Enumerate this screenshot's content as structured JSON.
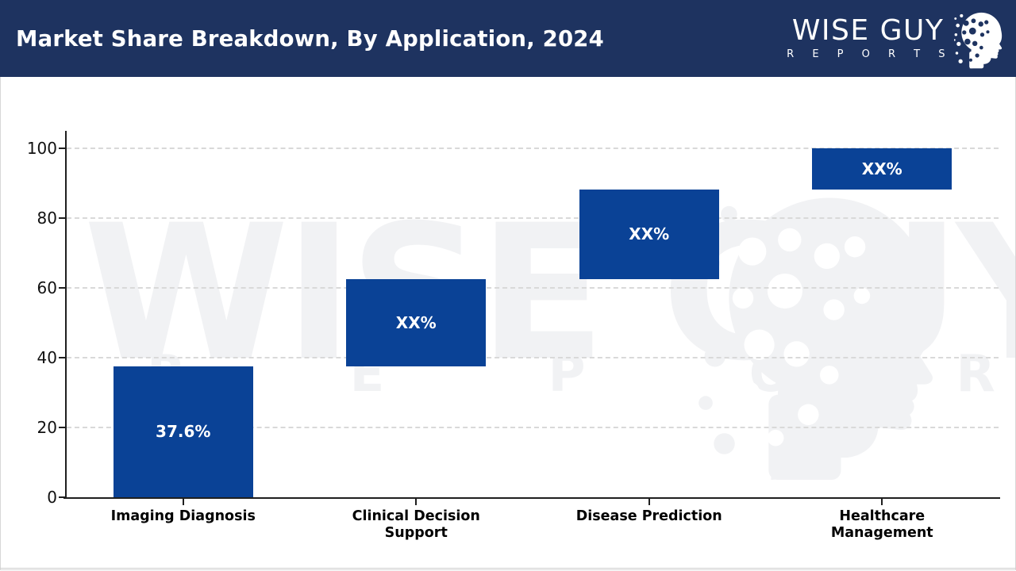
{
  "header": {
    "title": "Market Share Breakdown, By Application, 2024",
    "bg_color": "#1e3360",
    "logo": {
      "name": "WISE GUY",
      "sub": "R E P O R T S"
    }
  },
  "watermark": {
    "line1": "WISE GUY",
    "line2": "R E P O R T S"
  },
  "chart_data": {
    "type": "bar",
    "subtype": "waterfall-floating-bars",
    "title": "Market Share Breakdown, By Application, 2024",
    "categories": [
      "Imaging Diagnosis",
      "Clinical Decision Support",
      "Disease Prediction",
      "Healthcare Management"
    ],
    "segments": [
      {
        "category": "Imaging Diagnosis",
        "start": 0,
        "end": 37.6,
        "label": "37.6%"
      },
      {
        "category": "Clinical Decision Support",
        "start": 37.6,
        "end": 62.6,
        "label": "XX%"
      },
      {
        "category": "Disease Prediction",
        "start": 62.6,
        "end": 88.1,
        "label": "XX%"
      },
      {
        "category": "Healthcare Management",
        "start": 88.1,
        "end": 100,
        "label": "XX%"
      }
    ],
    "ylim": [
      0,
      100
    ],
    "yticks": [
      0,
      20,
      40,
      60,
      80,
      100
    ],
    "bar_color": "#0a4296",
    "grid": true,
    "legend": false
  }
}
